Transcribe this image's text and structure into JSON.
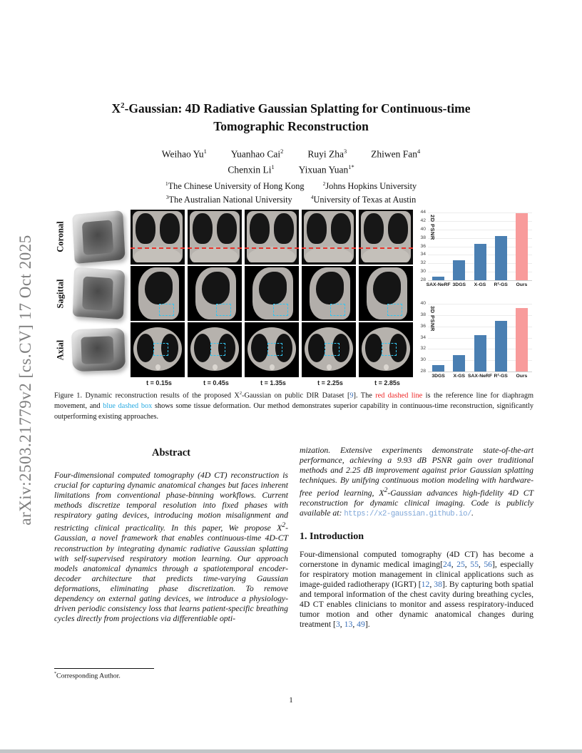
{
  "arxiv_banner": "arXiv:2503.21779v2  [cs.CV]  17 Oct 2025",
  "title": {
    "line1_segments": [
      {
        "t": "X",
        "s": "n"
      },
      {
        "t": "2",
        "s": "sup"
      },
      {
        "t": "-Gaussian: 4D Radiative Gaussian Splatting for Continuous-time",
        "s": "n"
      }
    ],
    "line2": "Tomographic Reconstruction"
  },
  "authors": [
    {
      "name": "Weihao Yu",
      "sup": "1"
    },
    {
      "name": "Yuanhao Cai",
      "sup": "2"
    },
    {
      "name": "Ruyi Zha",
      "sup": "3"
    },
    {
      "name": "Zhiwen Fan",
      "sup": "4"
    },
    {
      "name": "Chenxin Li",
      "sup": "1"
    },
    {
      "name": "Yixuan Yuan",
      "sup": "1*"
    }
  ],
  "affiliations": [
    {
      "sup": "1",
      "text": "The Chinese University of Hong Kong"
    },
    {
      "sup": "2",
      "text": "Johns Hopkins University"
    },
    {
      "sup": "3",
      "text": "The Australian National University"
    },
    {
      "sup": "4",
      "text": "University of Texas at Austin"
    }
  ],
  "figure": {
    "row_labels": [
      "Coronal",
      "Sagittal",
      "Axial"
    ],
    "time_labels": [
      "t = 0.15s",
      "t = 0.45s",
      "t = 1.35s",
      "t = 2.25s",
      "t = 2.85s"
    ],
    "annotation_colors": {
      "reference_line": "#e8332b",
      "deformation_box": "#35c4ef"
    }
  },
  "chart_data": [
    {
      "type": "bar",
      "ylabel": "2D PSNR",
      "categories": [
        "SAX-NeRF",
        "3DGS",
        "X-GS",
        "R²-GS",
        "Ours"
      ],
      "values": [
        28.9,
        32.8,
        36.6,
        38.5,
        43.9
      ],
      "ylim": [
        28,
        44
      ],
      "yticks": [
        28,
        30,
        32,
        34,
        36,
        38,
        40,
        42,
        44
      ],
      "grid": true,
      "bar_color": "#4a7fb2",
      "highlight_color": "#f89b9b",
      "highlight_index": 4
    },
    {
      "type": "bar",
      "ylabel": "3D PSNR",
      "categories": [
        "3DGS",
        "X-GS",
        "SAX-NeRF",
        "R²-GS",
        "Ours"
      ],
      "values": [
        29.1,
        30.9,
        34.5,
        37.0,
        39.2
      ],
      "ylim": [
        28,
        40
      ],
      "yticks": [
        28,
        30,
        32,
        34,
        36,
        38,
        40
      ],
      "grid": true,
      "bar_color": "#4a7fb2",
      "highlight_color": "#f89b9b",
      "highlight_index": 4
    }
  ],
  "caption_segments": [
    {
      "t": "Figure 1.  Dynamic reconstruction results of the proposed X",
      "s": "n"
    },
    {
      "t": "2",
      "s": "sup"
    },
    {
      "t": "-Gaussian on public DIR Dataset [",
      "s": "n"
    },
    {
      "t": "9",
      "s": "c"
    },
    {
      "t": "].  The ",
      "s": "n"
    },
    {
      "t": "red dashed line",
      "s": "red"
    },
    {
      "t": " is the reference line for diaphragm movement, and ",
      "s": "n"
    },
    {
      "t": "blue dashed box",
      "s": "cyan"
    },
    {
      "t": " shows some tissue deformation.  Our method demonstrates superior capability in continuous-time reconstruction, significantly outperforming existing approaches.",
      "s": "n"
    }
  ],
  "abstract": {
    "heading": "Abstract",
    "segments": [
      {
        "t": "Four-dimensional computed tomography (4D CT) reconstruction is crucial for capturing dynamic anatomical changes but faces inherent limitations from conventional phase-binning workflows.  Current methods discretize temporal resolution into fixed phases with respiratory gating devices, introducing motion misalignment and restricting clinical practicality.  In this paper, We propose X",
        "s": "n"
      },
      {
        "t": "2",
        "s": "sup"
      },
      {
        "t": "-Gaussian, a novel framework that enables continuous-time 4D-CT reconstruction by integrating dynamic radiative Gaussian splatting with self-supervised respiratory motion learning.  Our approach models anatomical dynamics through a spatiotemporal encoder-decoder architecture that predicts time-varying Gaussian deformations, eliminating phase discretization.  To remove dependency on external gating devices, we introduce a physiology-driven periodic consistency loss that learns patient-specific breathing cycles directly from projections via differentiable opti-",
        "s": "n"
      }
    ]
  },
  "abstract_continued_segments": [
    {
      "t": "mization.  Extensive experiments demonstrate state-of-the-art performance, achieving a 9.93 dB PSNR gain over traditional methods and 2.25 dB improvement against prior Gaussian splatting techniques.  By unifying continuous motion modeling with hardware-free period learning, X",
      "s": "n"
    },
    {
      "t": "2",
      "s": "sup"
    },
    {
      "t": "-Gaussian advances high-fidelity 4D CT reconstruction for dynamic clinical imaging.  Code is publicly available at: ",
      "s": "n"
    },
    {
      "t": "https://x2-gaussian.github.io/",
      "s": "url"
    },
    {
      "t": ".",
      "s": "n"
    }
  ],
  "introduction": {
    "heading": "1. Introduction",
    "segments": [
      {
        "t": "Four-dimensional computed tomography (4D CT) has become a cornerstone in dynamic medical imaging[",
        "s": "n"
      },
      {
        "t": "24",
        "s": "c"
      },
      {
        "t": ", ",
        "s": "n"
      },
      {
        "t": "25",
        "s": "c"
      },
      {
        "t": ", ",
        "s": "n"
      },
      {
        "t": "55",
        "s": "c"
      },
      {
        "t": ", ",
        "s": "n"
      },
      {
        "t": "56",
        "s": "c"
      },
      {
        "t": "], especially for respiratory motion management in clinical applications such as image-guided radiotherapy (IGRT) [",
        "s": "n"
      },
      {
        "t": "12",
        "s": "c"
      },
      {
        "t": ", ",
        "s": "n"
      },
      {
        "t": "38",
        "s": "c"
      },
      {
        "t": "].  By capturing both spatial and temporal information of the chest cavity during breathing cycles, 4D CT enables clinicians to monitor and assess respiratory-induced tumor motion and other dynamic anatomical changes during treatment [",
        "s": "n"
      },
      {
        "t": "3",
        "s": "c"
      },
      {
        "t": ", ",
        "s": "n"
      },
      {
        "t": "13",
        "s": "c"
      },
      {
        "t": ", ",
        "s": "n"
      },
      {
        "t": "49",
        "s": "c"
      },
      {
        "t": "].",
        "s": "n"
      }
    ]
  },
  "footnote": {
    "marker": "*",
    "text": "Corresponding Author."
  },
  "page_number": "1"
}
